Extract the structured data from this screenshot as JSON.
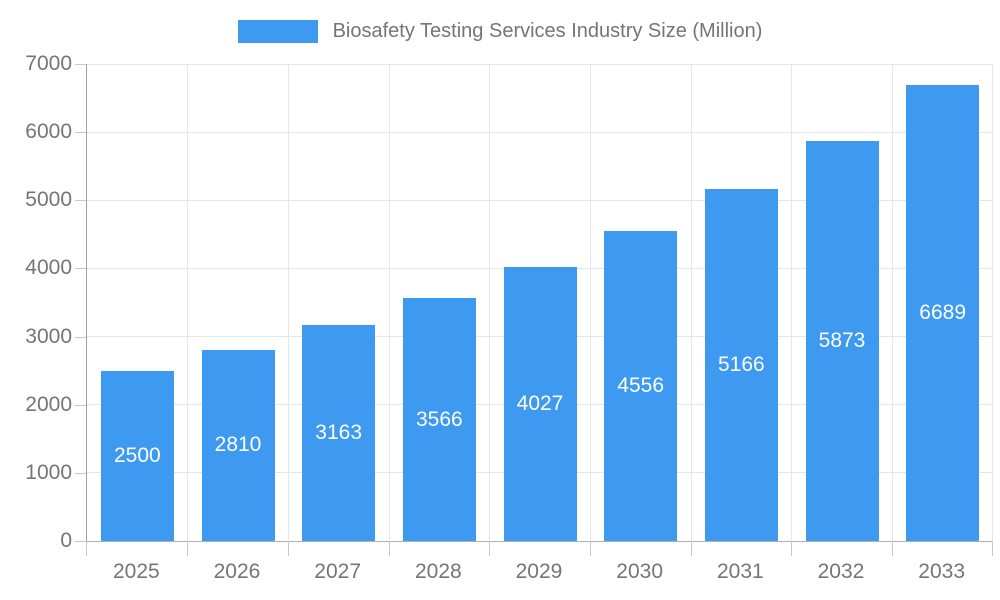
{
  "chart_data": {
    "type": "bar",
    "title": "Biosafety Testing Services Industry Size (Million)",
    "categories": [
      "2025",
      "2026",
      "2027",
      "2028",
      "2029",
      "2030",
      "2031",
      "2032",
      "2033"
    ],
    "series": [
      {
        "name": "Biosafety Testing Services Industry Size (Million)",
        "values": [
          2500,
          2810,
          3163,
          3566,
          4027,
          4556,
          5166,
          5873,
          6689
        ]
      }
    ],
    "values": [
      2500,
      2810,
      3163,
      3566,
      4027,
      4556,
      5166,
      5873,
      6689
    ],
    "bar_value_labels": [
      "2500",
      "2810",
      "3163",
      "3566",
      "4027",
      "4556",
      "5166",
      "5873",
      "6689"
    ],
    "xlabel": "",
    "ylabel": "",
    "ylim": [
      0,
      7000
    ],
    "yticks": [
      0,
      1000,
      2000,
      3000,
      4000,
      5000,
      6000,
      7000
    ],
    "ytick_labels": [
      "0",
      "1000",
      "2000",
      "3000",
      "4000",
      "5000",
      "6000",
      "7000"
    ],
    "grid": true,
    "legend_position": "top-center",
    "colors": {
      "bar": "#3d9af0",
      "bar_value_text": "#ffffff",
      "axis_text": "#757575",
      "gridline": "#e6e6e6",
      "axis_line": "#a0a0a0",
      "tick": "#c8c8c8",
      "background": "#ffffff"
    }
  }
}
